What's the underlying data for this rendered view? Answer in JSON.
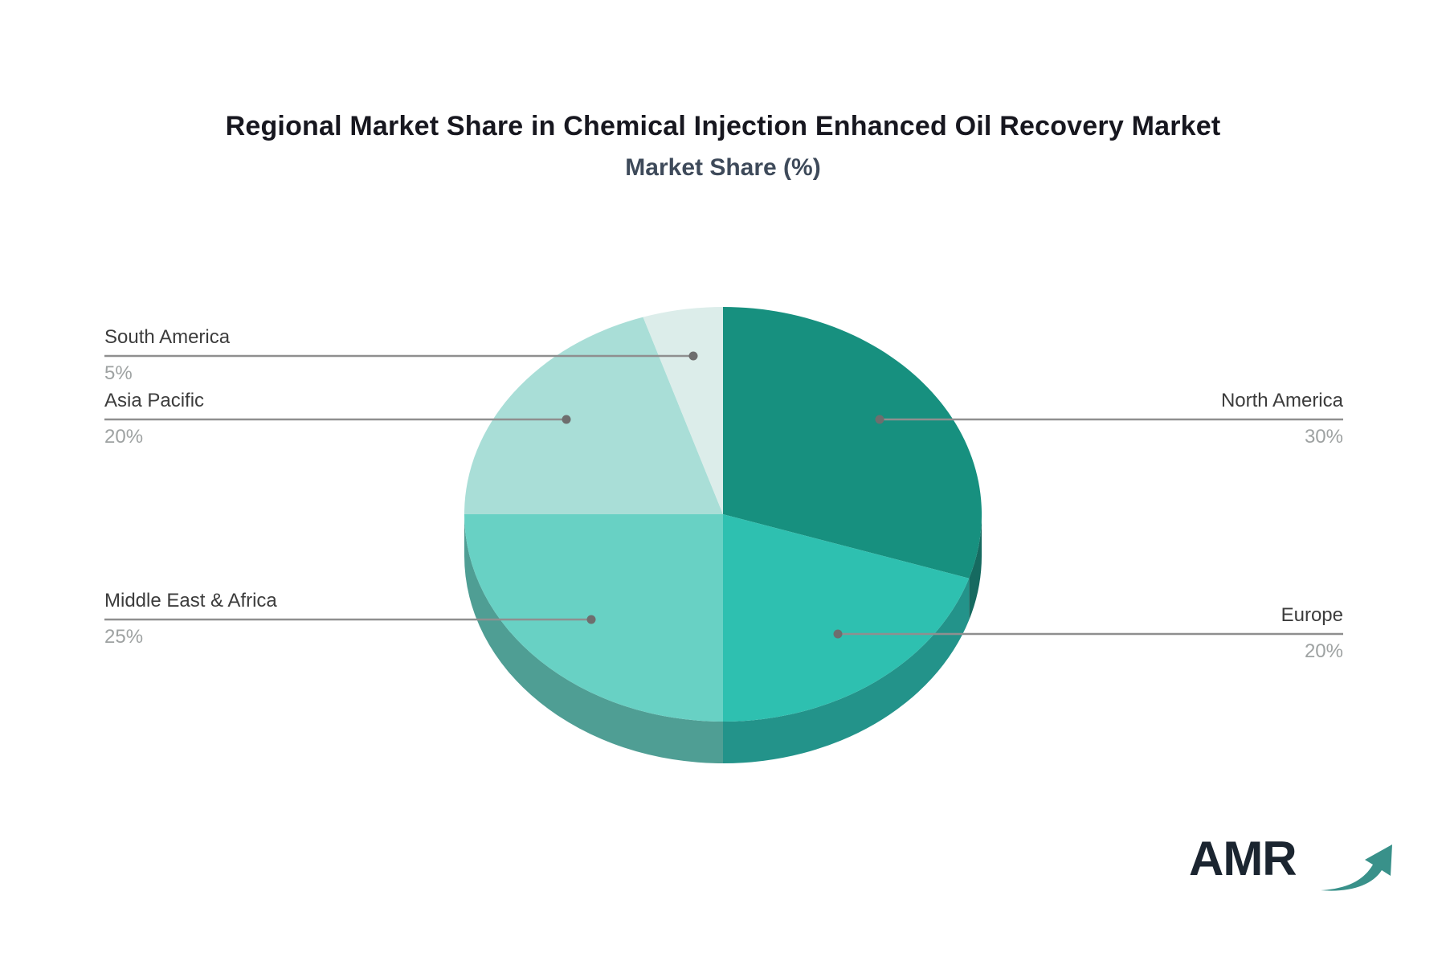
{
  "title": "Regional Market Share in Chemical Injection Enhanced Oil Recovery Market",
  "subtitle": "Market Share (%)",
  "chart_data": {
    "type": "pie",
    "title": "Regional Market Share in Chemical Injection Enhanced Oil Recovery Market",
    "subtitle": "Market Share (%)",
    "unit": "percent",
    "direction": "clockwise",
    "start_angle_deg": 0,
    "effect": "3d-depth",
    "legend_position": "callout-labels",
    "slices": [
      {
        "label": "North America",
        "value": 30,
        "percent_label": "30%",
        "color": "#17907F",
        "side_color": "#166A60"
      },
      {
        "label": "Europe",
        "value": 20,
        "percent_label": "20%",
        "color": "#2EC0B0",
        "side_color": "#23938A"
      },
      {
        "label": "Middle East & Africa",
        "value": 25,
        "percent_label": "25%",
        "color": "#68D1C4",
        "side_color": "#4F9E94"
      },
      {
        "label": "Asia Pacific",
        "value": 20,
        "percent_label": "20%",
        "color": "#A9DED7",
        "side_color": "#82B7B0"
      },
      {
        "label": "South America",
        "value": 5,
        "percent_label": "5%",
        "color": "#DCEDEA",
        "side_color": "#ABCCC7"
      }
    ]
  },
  "colors": {
    "title": "#17171F",
    "subtitle": "#3E4A5A",
    "label_text": "#3C3C3C",
    "percent_text": "#9EA2A2",
    "leader_line": "#8F8F8F",
    "leader_dot": "#6E6E6E",
    "background": "#FFFFFF"
  },
  "logo": {
    "text": "AMR",
    "text_color": "#1B2530",
    "arrow_color": "#39918A"
  }
}
